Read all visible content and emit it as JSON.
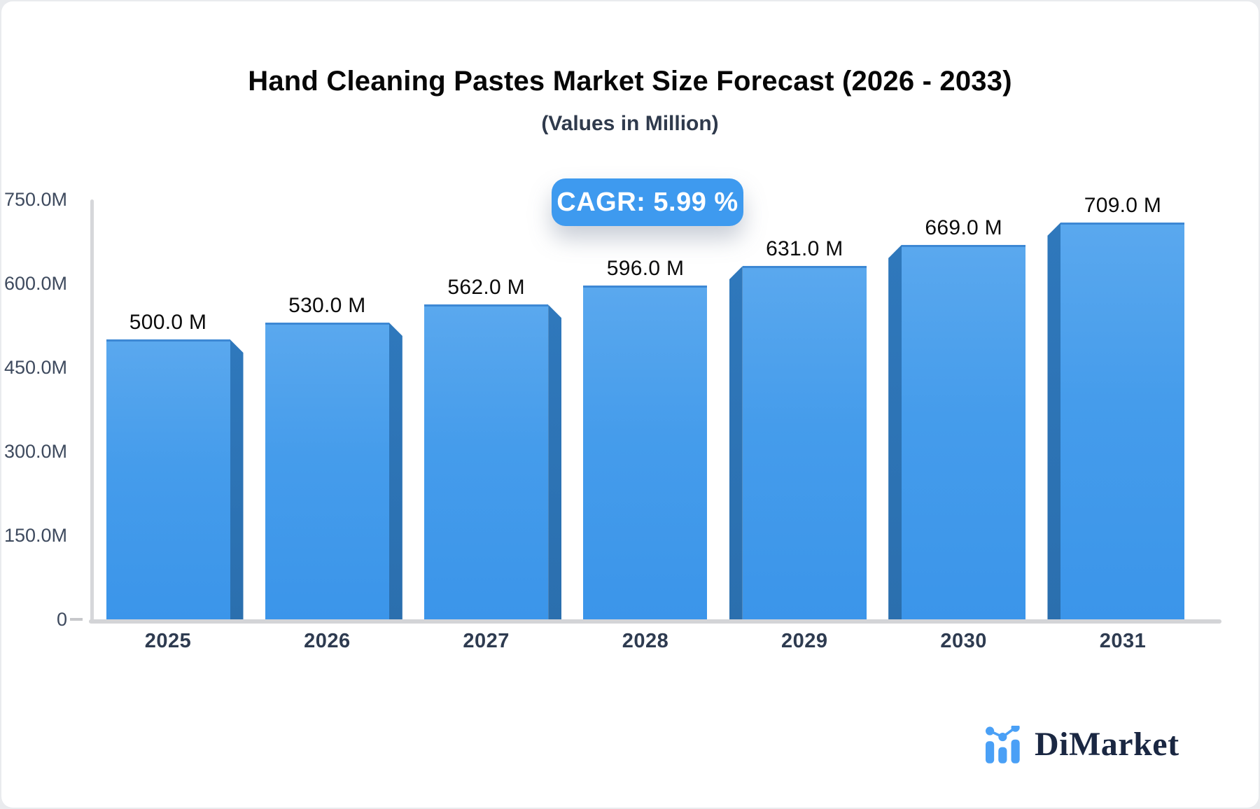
{
  "title": "Hand Cleaning Pastes Market Size Forecast (2026 - 2033)",
  "subtitle": "(Values in Million)",
  "badge": {
    "label": "CAGR: 5.99 %",
    "bg_color": "#3e9aef",
    "text_color": "#ffffff"
  },
  "chart_data": {
    "type": "bar",
    "categories": [
      "2025",
      "2026",
      "2027",
      "2028",
      "2029",
      "2030",
      "2031"
    ],
    "values": [
      500,
      530,
      562,
      596,
      631,
      669,
      709
    ],
    "bar_labels": [
      "500.0 M",
      "530.0 M",
      "562.0 M",
      "596.0 M",
      "631.0 M",
      "669.0 M",
      "709.0 M"
    ],
    "y_ticks": [
      "750.0M",
      "600.0M",
      "450.0M",
      "300.0M",
      "150.0M",
      "0"
    ],
    "ylim": [
      0,
      750
    ],
    "xlabel": "",
    "ylabel": "",
    "unit": "Million",
    "grid": false,
    "legend": "none",
    "bar_face_color": "#459ceb",
    "bar_side_color": "#2e73b2",
    "axis_color": "#d4d5d8"
  },
  "logo": {
    "text": "DiMarket",
    "icon": "mini-bar-chart-icon",
    "icon_color": "#4aa0f6",
    "text_color": "#1a2742"
  }
}
